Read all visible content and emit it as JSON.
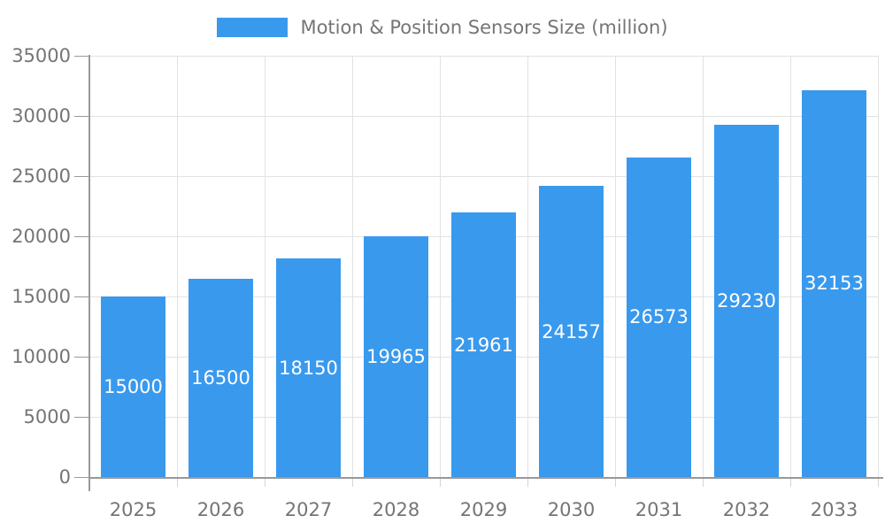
{
  "chart_data": {
    "type": "bar",
    "title": "Motion & Position Sensors Size (million)",
    "legend": [
      "Motion & Position Sensors Size (million)"
    ],
    "legend_position": "top-center",
    "categories": [
      "2025",
      "2026",
      "2027",
      "2028",
      "2029",
      "2030",
      "2031",
      "2032",
      "2033"
    ],
    "series": [
      {
        "name": "Motion & Position Sensors Size (million)",
        "values": [
          15000,
          16500,
          18150,
          19965,
          21961,
          24157,
          26573,
          29230,
          32153
        ]
      }
    ],
    "xlabel": "",
    "ylabel": "",
    "ylim": [
      0,
      35000
    ],
    "yticks": [
      0,
      5000,
      10000,
      15000,
      20000,
      25000,
      30000,
      35000
    ],
    "grid": true,
    "bar_value_labels_inside": true,
    "colors": {
      "bar": "#3999ED",
      "bar_label": "#FFFFFF",
      "axis_text": "#757575",
      "grid_line": "#E2E2E2",
      "category_tick": "#D4D4D4",
      "axis_line": "#999999",
      "background": "#FFFFFF"
    }
  }
}
